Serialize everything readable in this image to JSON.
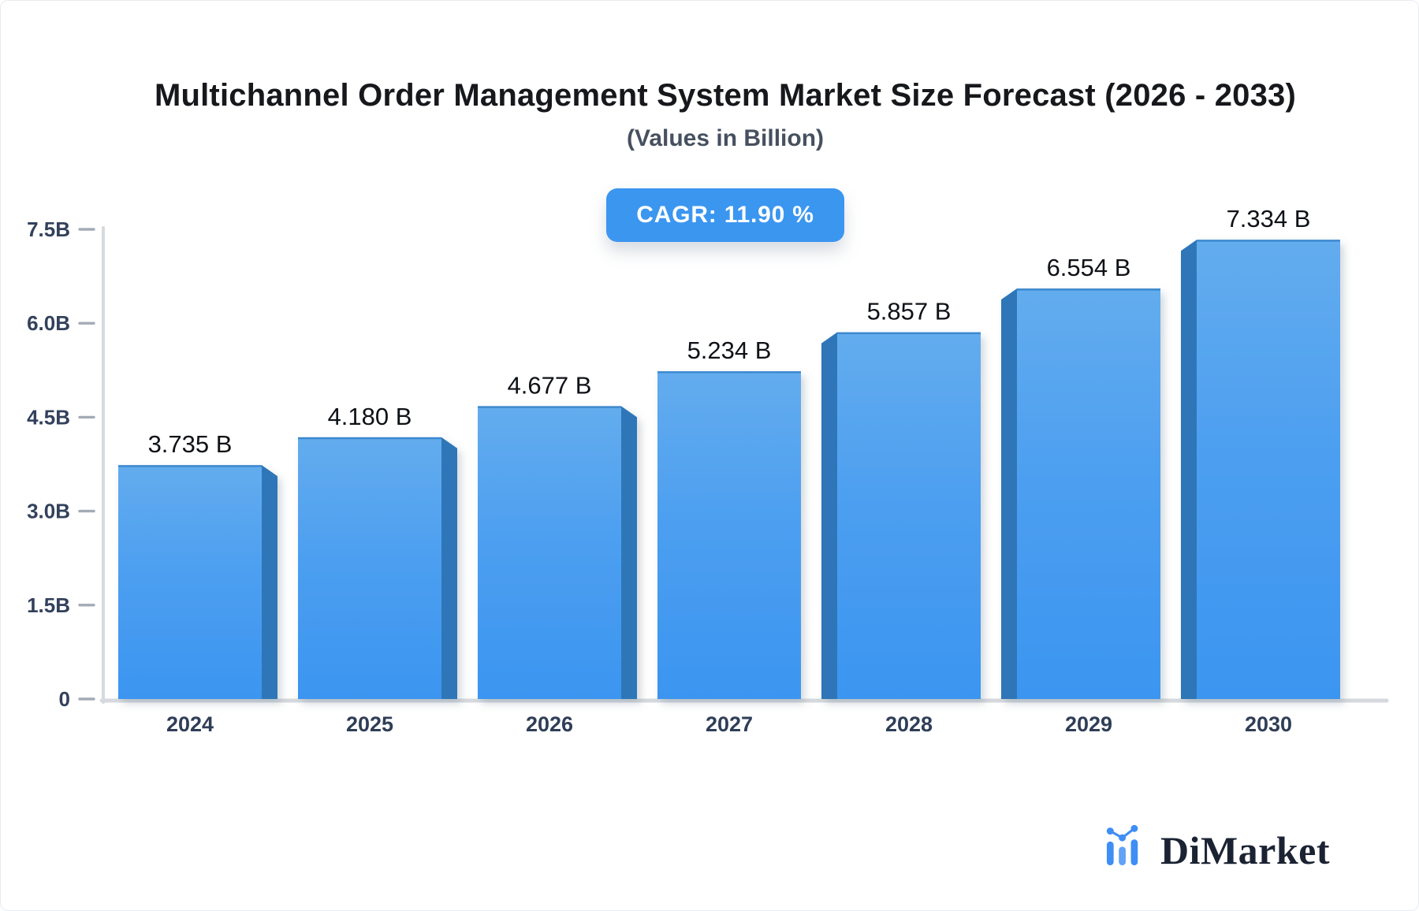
{
  "header": {
    "title": "Multichannel Order Management System Market Size Forecast (2026 - 2033)",
    "subtitle": "(Values in Billion)",
    "cagr_badge": "CAGR: 11.90 %"
  },
  "chart_data": {
    "type": "bar",
    "title": "Multichannel Order Management System Market Size Forecast (2026 - 2033)",
    "subtitle": "(Values in Billion)",
    "cagr_text": "CAGR: 11.90 %",
    "categories": [
      "2024",
      "2025",
      "2026",
      "2027",
      "2028",
      "2029",
      "2030"
    ],
    "values": [
      3.735,
      4.18,
      4.677,
      5.234,
      5.857,
      6.554,
      7.334
    ],
    "value_labels": [
      "3.735 B",
      "4.180 B",
      "4.677 B",
      "5.234 B",
      "5.857 B",
      "6.554 B",
      "7.334 B"
    ],
    "xlabel": "",
    "ylabel": "",
    "ylim": [
      0,
      7.5
    ],
    "yticks": [
      {
        "value": 0,
        "label": "0"
      },
      {
        "value": 1.5,
        "label": "1.5B"
      },
      {
        "value": 3.0,
        "label": "3.0B"
      },
      {
        "value": 4.5,
        "label": "4.5B"
      },
      {
        "value": 6.0,
        "label": "6.0B"
      },
      {
        "value": 7.5,
        "label": "7.5B"
      }
    ],
    "grid": false,
    "legend": false,
    "bar_style": "pseudo-3d",
    "colors": {
      "face_top": "#63acee",
      "face_mid": "#4d9ff0",
      "face_bottom": "#3b95f0",
      "face_top_edge": "#2f7cc2",
      "side": "#2d76b8",
      "axis_line": "#d6dade",
      "tick_dash": "#a3abb6",
      "tick_label": "#33415c",
      "year_label": "#2f3e57",
      "value_label": "#0e1116",
      "badge": "#3b96f0"
    }
  },
  "footer": {
    "logo_text": "DiMarket",
    "logo_icon": "bar-chart-sparkline-icon",
    "logo_color": "#1b2333",
    "logo_icon_color": "#3f8ef5"
  }
}
